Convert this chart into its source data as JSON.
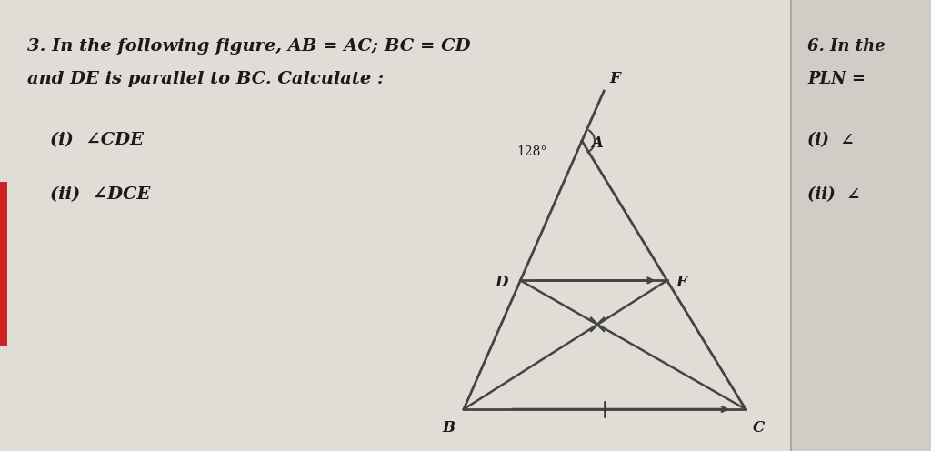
{
  "bg_color": "#c8c4be",
  "page_color": "#e0dcd6",
  "title_line1": "3. In the following figure, AB = AC; BC = CD",
  "title_line2": "and DE is parallel to BC. Calculate :",
  "item_i": "(i)  ∠CDE",
  "item_ii": "(ii)  ∠DCE",
  "right_text_line1": "6. In the",
  "right_text_line2": "PLN =",
  "right_text_line3": "(i)  ∠",
  "right_text_line4": "(ii)  ∠",
  "angle_label": "128°",
  "triangle_color": "#444444",
  "tick_color": "#333333",
  "red_strip_color": "#cc2222",
  "divider_color": "#b0a8a0"
}
